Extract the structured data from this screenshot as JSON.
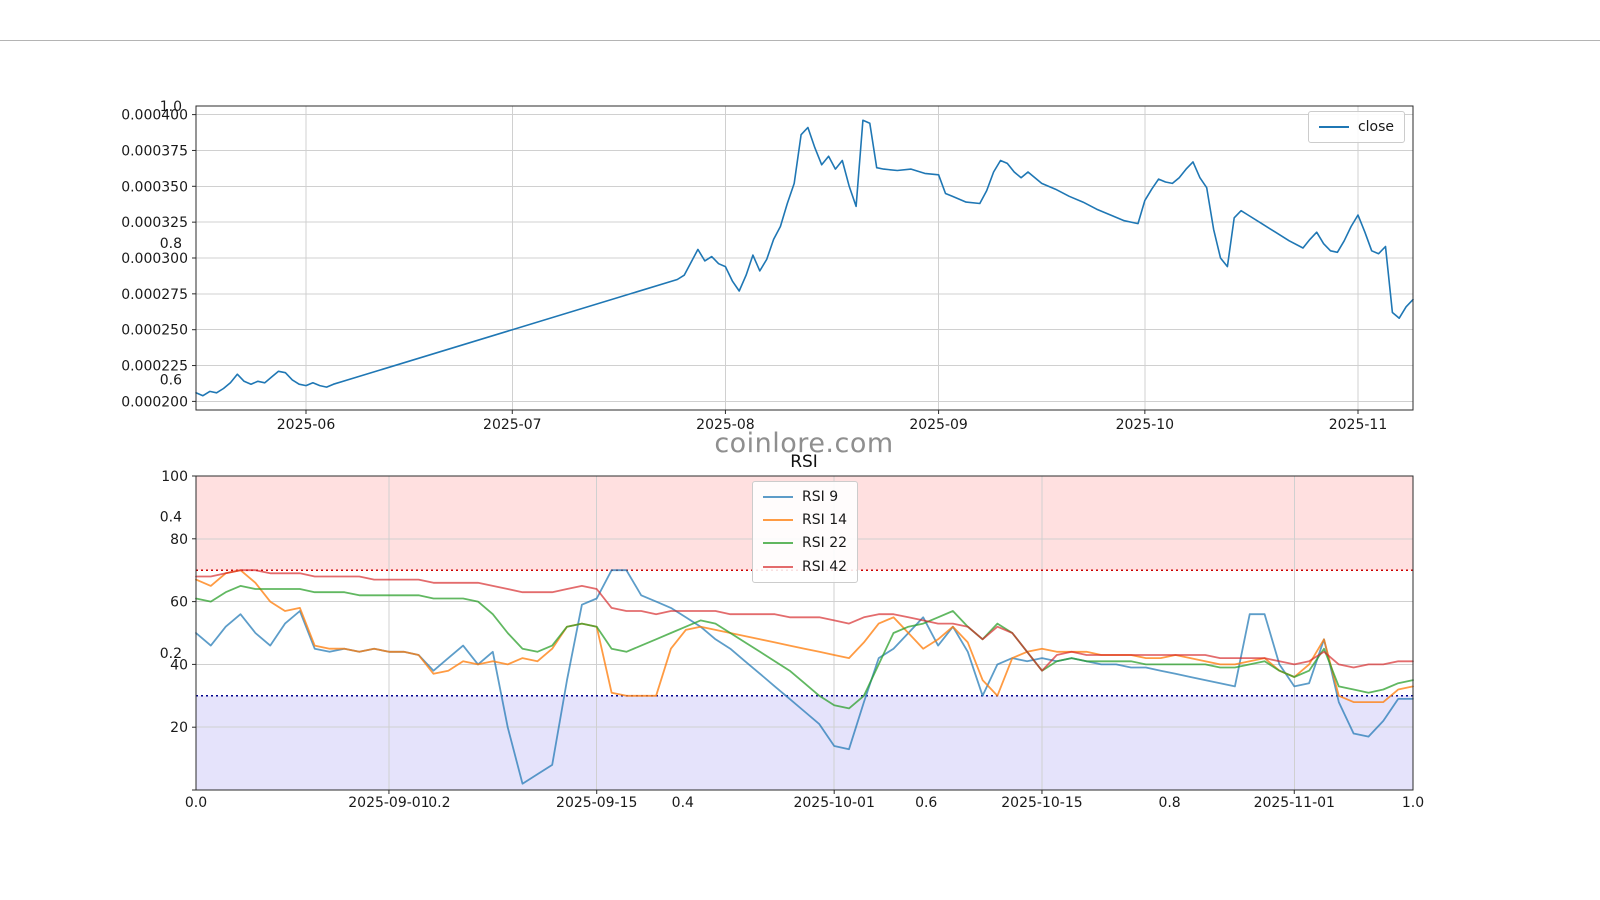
{
  "watermark": "coinlore.com",
  "colors": {
    "grid": "#d0d0d0",
    "spine": "#2b2b2b",
    "text": "#1a1a1a",
    "close": "#1f77b4",
    "rsi9": "#1f77b4",
    "rsi14": "#ff7f0e",
    "rsi22": "#2ca02c",
    "rsi42": "#d62728",
    "overbought_band": "rgba(255,60,60,0.16)",
    "oversold_band": "rgba(80,70,230,0.15)",
    "overbought_line": "#cc0000",
    "oversold_line": "#00008b"
  },
  "overlay_axis": {
    "x_ticks": [
      "0.0",
      "0.2",
      "0.4",
      "0.6",
      "0.8",
      "1.0"
    ],
    "y_ticks": [
      "1.0",
      "0.8",
      "0.6",
      "0.4",
      "0.2",
      "0.0"
    ]
  },
  "chart_data": [
    {
      "id": "price",
      "type": "line",
      "title": "",
      "x_type": "date",
      "x_range": [
        "2025-05-16",
        "2025-11-09"
      ],
      "ylim": [
        0.000194,
        0.000406
      ],
      "grid": true,
      "legend_position": "upper right",
      "x_ticks": [
        {
          "date": "2025-06-01",
          "label": "2025-06"
        },
        {
          "date": "2025-07-01",
          "label": "2025-07"
        },
        {
          "date": "2025-08-01",
          "label": "2025-08"
        },
        {
          "date": "2025-09-01",
          "label": "2025-09"
        },
        {
          "date": "2025-10-01",
          "label": "2025-10"
        },
        {
          "date": "2025-11-01",
          "label": "2025-11"
        }
      ],
      "y_ticks": [
        {
          "value": 0.0002,
          "label": "0.000200"
        },
        {
          "value": 0.000225,
          "label": "0.000225"
        },
        {
          "value": 0.00025,
          "label": "0.000250"
        },
        {
          "value": 0.000275,
          "label": "0.000275"
        },
        {
          "value": 0.0003,
          "label": "0.000300"
        },
        {
          "value": 0.000325,
          "label": "0.000325"
        },
        {
          "value": 0.00035,
          "label": "0.000350"
        },
        {
          "value": 0.000375,
          "label": "0.000375"
        },
        {
          "value": 0.0004,
          "label": "0.000400"
        }
      ],
      "series": [
        {
          "name": "close",
          "color": "#1f77b4",
          "width": 1.6,
          "opacity": 1,
          "points": [
            [
              "2025-05-16",
              0.000206
            ],
            [
              "2025-05-17",
              0.000204
            ],
            [
              "2025-05-18",
              0.000207
            ],
            [
              "2025-05-19",
              0.000206
            ],
            [
              "2025-05-20",
              0.000209
            ],
            [
              "2025-05-21",
              0.000213
            ],
            [
              "2025-05-22",
              0.000219
            ],
            [
              "2025-05-23",
              0.000214
            ],
            [
              "2025-05-24",
              0.000212
            ],
            [
              "2025-05-25",
              0.000214
            ],
            [
              "2025-05-26",
              0.000213
            ],
            [
              "2025-05-27",
              0.000217
            ],
            [
              "2025-05-28",
              0.000221
            ],
            [
              "2025-05-29",
              0.00022
            ],
            [
              "2025-05-30",
              0.000215
            ],
            [
              "2025-05-31",
              0.000212
            ],
            [
              "2025-06-01",
              0.000211
            ],
            [
              "2025-06-02",
              0.000213
            ],
            [
              "2025-06-03",
              0.000211
            ],
            [
              "2025-06-04",
              0.00021
            ],
            [
              "2025-06-05",
              0.000212
            ],
            [
              "2025-07-25",
              0.000285
            ],
            [
              "2025-07-26",
              0.000288
            ],
            [
              "2025-07-27",
              0.000297
            ],
            [
              "2025-07-28",
              0.000306
            ],
            [
              "2025-07-29",
              0.000298
            ],
            [
              "2025-07-30",
              0.000301
            ],
            [
              "2025-07-31",
              0.000296
            ],
            [
              "2025-08-01",
              0.000294
            ],
            [
              "2025-08-02",
              0.000284
            ],
            [
              "2025-08-03",
              0.000277
            ],
            [
              "2025-08-04",
              0.000288
            ],
            [
              "2025-08-05",
              0.000302
            ],
            [
              "2025-08-06",
              0.000291
            ],
            [
              "2025-08-07",
              0.000299
            ],
            [
              "2025-08-08",
              0.000313
            ],
            [
              "2025-08-09",
              0.000322
            ],
            [
              "2025-08-10",
              0.000338
            ],
            [
              "2025-08-11",
              0.000352
            ],
            [
              "2025-08-12",
              0.000386
            ],
            [
              "2025-08-13",
              0.000391
            ],
            [
              "2025-08-14",
              0.000377
            ],
            [
              "2025-08-15",
              0.000365
            ],
            [
              "2025-08-16",
              0.000371
            ],
            [
              "2025-08-17",
              0.000362
            ],
            [
              "2025-08-18",
              0.000368
            ],
            [
              "2025-08-19",
              0.00035
            ],
            [
              "2025-08-20",
              0.000336
            ],
            [
              "2025-08-21",
              0.000396
            ],
            [
              "2025-08-22",
              0.000394
            ],
            [
              "2025-08-23",
              0.000363
            ],
            [
              "2025-08-24",
              0.000362
            ],
            [
              "2025-08-26",
              0.000361
            ],
            [
              "2025-08-28",
              0.000362
            ],
            [
              "2025-08-30",
              0.000359
            ],
            [
              "2025-09-01",
              0.000358
            ],
            [
              "2025-09-02",
              0.000345
            ],
            [
              "2025-09-03",
              0.000343
            ],
            [
              "2025-09-05",
              0.000339
            ],
            [
              "2025-09-07",
              0.000338
            ],
            [
              "2025-09-08",
              0.000347
            ],
            [
              "2025-09-09",
              0.00036
            ],
            [
              "2025-09-10",
              0.000368
            ],
            [
              "2025-09-11",
              0.000366
            ],
            [
              "2025-09-12",
              0.00036
            ],
            [
              "2025-09-13",
              0.000356
            ],
            [
              "2025-09-14",
              0.00036
            ],
            [
              "2025-09-16",
              0.000352
            ],
            [
              "2025-09-18",
              0.000348
            ],
            [
              "2025-09-20",
              0.000343
            ],
            [
              "2025-09-22",
              0.000339
            ],
            [
              "2025-09-24",
              0.000334
            ],
            [
              "2025-09-26",
              0.00033
            ],
            [
              "2025-09-28",
              0.000326
            ],
            [
              "2025-09-30",
              0.000324
            ],
            [
              "2025-10-01",
              0.00034
            ],
            [
              "2025-10-02",
              0.000348
            ],
            [
              "2025-10-03",
              0.000355
            ],
            [
              "2025-10-04",
              0.000353
            ],
            [
              "2025-10-05",
              0.000352
            ],
            [
              "2025-10-06",
              0.000356
            ],
            [
              "2025-10-07",
              0.000362
            ],
            [
              "2025-10-08",
              0.000367
            ],
            [
              "2025-10-09",
              0.000356
            ],
            [
              "2025-10-10",
              0.000349
            ],
            [
              "2025-10-11",
              0.00032
            ],
            [
              "2025-10-12",
              0.0003
            ],
            [
              "2025-10-13",
              0.000294
            ],
            [
              "2025-10-14",
              0.000328
            ],
            [
              "2025-10-15",
              0.000333
            ],
            [
              "2025-10-16",
              0.00033
            ],
            [
              "2025-10-18",
              0.000324
            ],
            [
              "2025-10-20",
              0.000318
            ],
            [
              "2025-10-22",
              0.000312
            ],
            [
              "2025-10-24",
              0.000307
            ],
            [
              "2025-10-25",
              0.000313
            ],
            [
              "2025-10-26",
              0.000318
            ],
            [
              "2025-10-27",
              0.00031
            ],
            [
              "2025-10-28",
              0.000305
            ],
            [
              "2025-10-29",
              0.000304
            ],
            [
              "2025-10-30",
              0.000312
            ],
            [
              "2025-10-31",
              0.000322
            ],
            [
              "2025-11-01",
              0.00033
            ],
            [
              "2025-11-02",
              0.000318
            ],
            [
              "2025-11-03",
              0.000305
            ],
            [
              "2025-11-04",
              0.000303
            ],
            [
              "2025-11-05",
              0.000308
            ],
            [
              "2025-11-06",
              0.000262
            ],
            [
              "2025-11-07",
              0.000258
            ],
            [
              "2025-11-08",
              0.000266
            ],
            [
              "2025-11-09",
              0.000271
            ]
          ]
        }
      ]
    },
    {
      "id": "rsi",
      "type": "line",
      "title": "RSI",
      "x_type": "date",
      "x_range": [
        "2025-08-19",
        "2025-11-09"
      ],
      "ylim": [
        0,
        100
      ],
      "grid": true,
      "legend_position": "upper center",
      "bands": [
        {
          "name": "overbought-band",
          "y0": 70,
          "y1": 100,
          "color": "rgba(255,60,60,0.16)"
        },
        {
          "name": "oversold-band",
          "y0": 0,
          "y1": 30,
          "color": "rgba(80,70,230,0.15)"
        }
      ],
      "hlines": [
        {
          "name": "overbought-line",
          "y": 70,
          "color": "#cc0000"
        },
        {
          "name": "oversold-line",
          "y": 30,
          "color": "#00008b"
        }
      ],
      "x_ticks": [
        {
          "date": "2025-09-01",
          "label": "2025-09-01"
        },
        {
          "date": "2025-09-15",
          "label": "2025-09-15"
        },
        {
          "date": "2025-10-01",
          "label": "2025-10-01"
        },
        {
          "date": "2025-10-15",
          "label": "2025-10-15"
        },
        {
          "date": "2025-11-01",
          "label": "2025-11-01"
        }
      ],
      "y_ticks": [
        {
          "value": 0,
          "label": ""
        },
        {
          "value": 20,
          "label": "20"
        },
        {
          "value": 40,
          "label": "40"
        },
        {
          "value": 60,
          "label": "60"
        },
        {
          "value": 80,
          "label": "80"
        },
        {
          "value": 100,
          "label": "100"
        }
      ],
      "series": [
        {
          "name": "RSI 9",
          "color": "#1f77b4",
          "width": 1.8,
          "opacity": 0.72,
          "start_date": "2025-08-19",
          "values": [
            50,
            46,
            52,
            56,
            50,
            46,
            53,
            57,
            45,
            44,
            45,
            44,
            45,
            44,
            44,
            43,
            38,
            42,
            46,
            40,
            44,
            20,
            2,
            5,
            8,
            35,
            59,
            61,
            70,
            70,
            62,
            60,
            58,
            55,
            52,
            48,
            45,
            41,
            37,
            33,
            29,
            25,
            21,
            14,
            13,
            28,
            42,
            45,
            50,
            55,
            46,
            52,
            44,
            30,
            40,
            42,
            41,
            42,
            41,
            42,
            41,
            40,
            40,
            39,
            39,
            38,
            37,
            36,
            35,
            34,
            33,
            56,
            56,
            40,
            33,
            34,
            48,
            28,
            18,
            17,
            22,
            29,
            29
          ]
        },
        {
          "name": "RSI 14",
          "color": "#ff7f0e",
          "width": 1.8,
          "opacity": 0.78,
          "start_date": "2025-08-19",
          "values": [
            67,
            65,
            69,
            70,
            66,
            60,
            57,
            58,
            46,
            45,
            45,
            44,
            45,
            44,
            44,
            43,
            37,
            38,
            41,
            40,
            41,
            40,
            42,
            41,
            45,
            52,
            53,
            52,
            31,
            30,
            30,
            30,
            45,
            51,
            52,
            51,
            50,
            49,
            48,
            47,
            46,
            45,
            44,
            43,
            42,
            47,
            53,
            55,
            50,
            45,
            48,
            52,
            47,
            35,
            30,
            42,
            44,
            45,
            44,
            44,
            44,
            43,
            43,
            43,
            42,
            42,
            43,
            42,
            41,
            40,
            40,
            41,
            42,
            38,
            36,
            40,
            48,
            30,
            28,
            28,
            28,
            32,
            33
          ]
        },
        {
          "name": "RSI 22",
          "color": "#2ca02c",
          "width": 1.8,
          "opacity": 0.75,
          "start_date": "2025-08-19",
          "values": [
            61,
            60,
            63,
            65,
            64,
            64,
            64,
            64,
            63,
            63,
            63,
            62,
            62,
            62,
            62,
            62,
            61,
            61,
            61,
            60,
            56,
            50,
            45,
            44,
            46,
            52,
            53,
            52,
            45,
            44,
            46,
            48,
            50,
            52,
            54,
            53,
            50,
            47,
            44,
            41,
            38,
            34,
            30,
            27,
            26,
            30,
            40,
            50,
            52,
            53,
            55,
            57,
            52,
            48,
            53,
            50,
            44,
            38,
            41,
            42,
            41,
            41,
            41,
            41,
            40,
            40,
            40,
            40,
            40,
            39,
            39,
            40,
            41,
            38,
            36,
            38,
            45,
            33,
            32,
            31,
            32,
            34,
            35
          ]
        },
        {
          "name": "RSI 42",
          "color": "#d62728",
          "width": 1.8,
          "opacity": 0.68,
          "start_date": "2025-08-19",
          "values": [
            68,
            68,
            69,
            70,
            70,
            69,
            69,
            69,
            68,
            68,
            68,
            68,
            67,
            67,
            67,
            67,
            66,
            66,
            66,
            66,
            65,
            64,
            63,
            63,
            63,
            64,
            65,
            64,
            58,
            57,
            57,
            56,
            57,
            57,
            57,
            57,
            56,
            56,
            56,
            56,
            55,
            55,
            55,
            54,
            53,
            55,
            56,
            56,
            55,
            54,
            53,
            53,
            52,
            48,
            52,
            50,
            44,
            38,
            43,
            44,
            43,
            43,
            43,
            43,
            43,
            43,
            43,
            43,
            43,
            42,
            42,
            42,
            42,
            41,
            40,
            41,
            44,
            40,
            39,
            40,
            40,
            41,
            41
          ]
        }
      ]
    }
  ]
}
